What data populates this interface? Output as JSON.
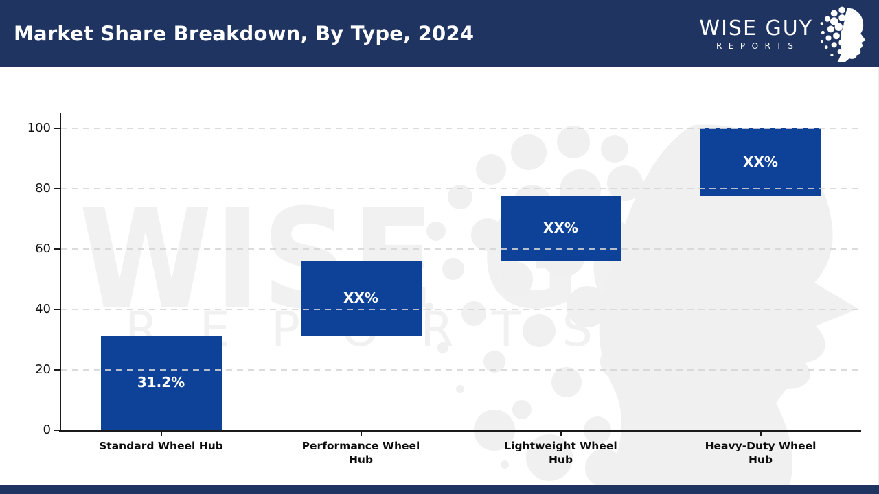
{
  "header": {
    "title": "Market Share Breakdown, By Type, 2024",
    "logo": {
      "line1": "WISE GUY",
      "line2": "REPORTS"
    }
  },
  "watermark": {
    "line1": "WISE GUY",
    "line2": "REPORTS"
  },
  "chart_data": {
    "type": "bar",
    "subtype": "stacked_percentage_waterfall",
    "title": "Market Share Breakdown, By Type, 2024",
    "categories": [
      "Standard Wheel Hub",
      "Performance Wheel Hub",
      "Lightweight Wheel Hub",
      "Heavy-Duty Wheel Hub"
    ],
    "segments": [
      {
        "category": "Standard Wheel Hub",
        "start": 0,
        "end": 31.2,
        "label": "31.2%"
      },
      {
        "category": "Performance Wheel Hub",
        "start": 31.2,
        "end": 56.1,
        "label": "XX%"
      },
      {
        "category": "Lightweight Wheel Hub",
        "start": 56.1,
        "end": 77.5,
        "label": "XX%"
      },
      {
        "category": "Heavy-Duty Wheel Hub",
        "start": 77.5,
        "end": 100,
        "label": "XX%"
      }
    ],
    "ylim": [
      0,
      100
    ],
    "yticks": [
      0,
      20,
      40,
      60,
      80,
      100
    ],
    "grid": "horizontal-dashed",
    "legend": "none",
    "bar_color": "#0d4298",
    "bar_label_color": "#ffffff"
  },
  "colors": {
    "header_navy": "#1f3461",
    "footer_navy": "#1f3461",
    "bar_blue": "#0d4298",
    "grid_gray": "#d8d8d8",
    "axis_black": "#1a1a1a",
    "watermark_gray": "#f1f1f1"
  }
}
